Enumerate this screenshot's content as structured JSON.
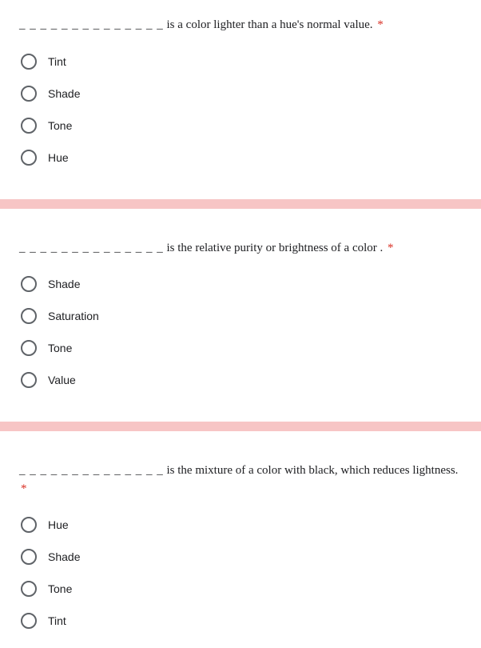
{
  "colors": {
    "required": "#d93025",
    "divider": "#f7c5c5",
    "radio_border": "#5f6368",
    "text": "#202124",
    "background": "#ffffff"
  },
  "blank_placeholder": "_ _ _ _ _ _ _ _ _ _ _ _ _ _",
  "required_marker": "*",
  "questions": [
    {
      "prompt_suffix": " is a color lighter than a hue's normal value. ",
      "options": [
        "Tint",
        "Shade",
        "Tone",
        "Hue"
      ]
    },
    {
      "prompt_suffix": " is the relative purity or brightness of a color . ",
      "options": [
        "Shade",
        "Saturation",
        "Tone",
        "Value"
      ]
    },
    {
      "prompt_suffix": " is the mixture of a color with black, which reduces lightness. ",
      "options": [
        "Hue",
        "Shade",
        "Tone",
        "Tint"
      ]
    }
  ]
}
